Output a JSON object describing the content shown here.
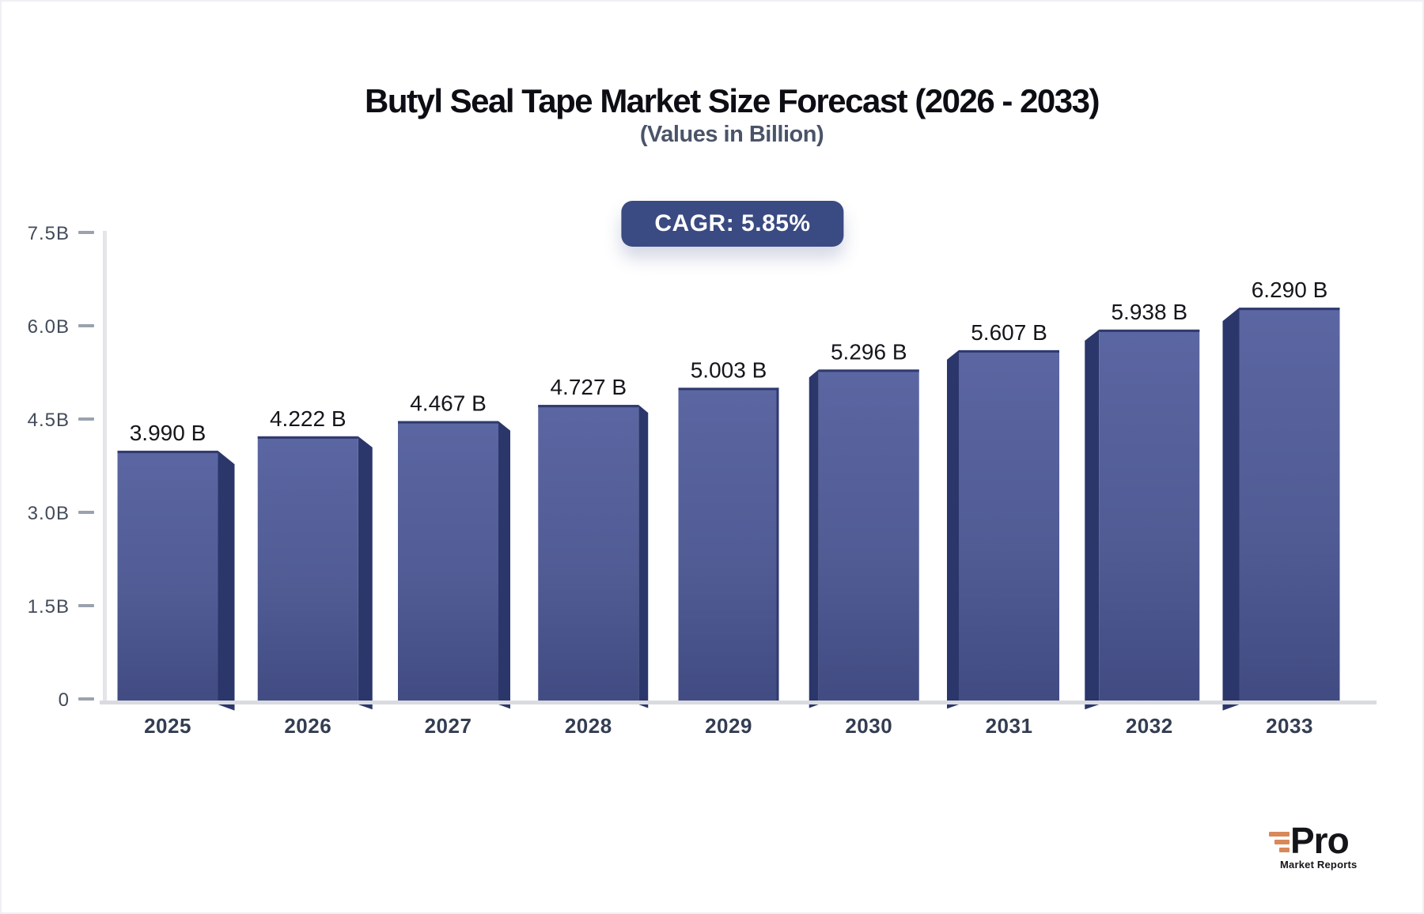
{
  "header": {
    "title": "Butyl Seal Tape Market Size Forecast (2026 - 2033)",
    "subtitle": "(Values in Billion)",
    "cagr_label": "CAGR: 5.85%"
  },
  "chart_data": {
    "type": "bar",
    "style": "3d-perspective",
    "title": "Butyl Seal Tape Market Size Forecast (2026 - 2033)",
    "subtitle": "(Values in Billion)",
    "cagr": "5.85%",
    "unit": "Billion",
    "categories": [
      "2025",
      "2026",
      "2027",
      "2028",
      "2029",
      "2030",
      "2031",
      "2032",
      "2033"
    ],
    "values": [
      3.99,
      4.222,
      4.467,
      4.727,
      5.003,
      5.296,
      5.607,
      5.938,
      6.29
    ],
    "value_labels": [
      "3.990 B",
      "4.222 B",
      "4.467 B",
      "4.727 B",
      "5.003 B",
      "5.296 B",
      "5.607 B",
      "5.938 B",
      "6.290 B"
    ],
    "xlabel": "",
    "ylabel": "",
    "ylim": [
      0,
      7.5
    ],
    "y_ticks": [
      {
        "value": 0,
        "label": "0"
      },
      {
        "value": 1.5,
        "label": "1.5B"
      },
      {
        "value": 3.0,
        "label": "3.0B"
      },
      {
        "value": 4.5,
        "label": "4.5B"
      },
      {
        "value": 6.0,
        "label": "6.0B"
      },
      {
        "value": 7.5,
        "label": "7.5B"
      }
    ],
    "grid": false,
    "legend": "none",
    "colors": {
      "bar_face_top": "#5b66a2",
      "bar_face_mid": "#515c95",
      "bar_face_bottom": "#414b82",
      "bar_rim": "#2f3a6e",
      "bar_side": "#2b366b",
      "axis_line_vertical": "#e4e5e9",
      "axis_line_horizontal": "#d9dbe0",
      "tick_dash": "#9aa2ae",
      "tick_label": "#424b5a",
      "year_label": "#333d52",
      "value_label": "#14161b",
      "badge_bg": "#3a4a82",
      "badge_text": "#ffffff"
    }
  },
  "logo": {
    "name": "Pro",
    "tagline": "Market Reports",
    "accent": "#d9885a"
  }
}
